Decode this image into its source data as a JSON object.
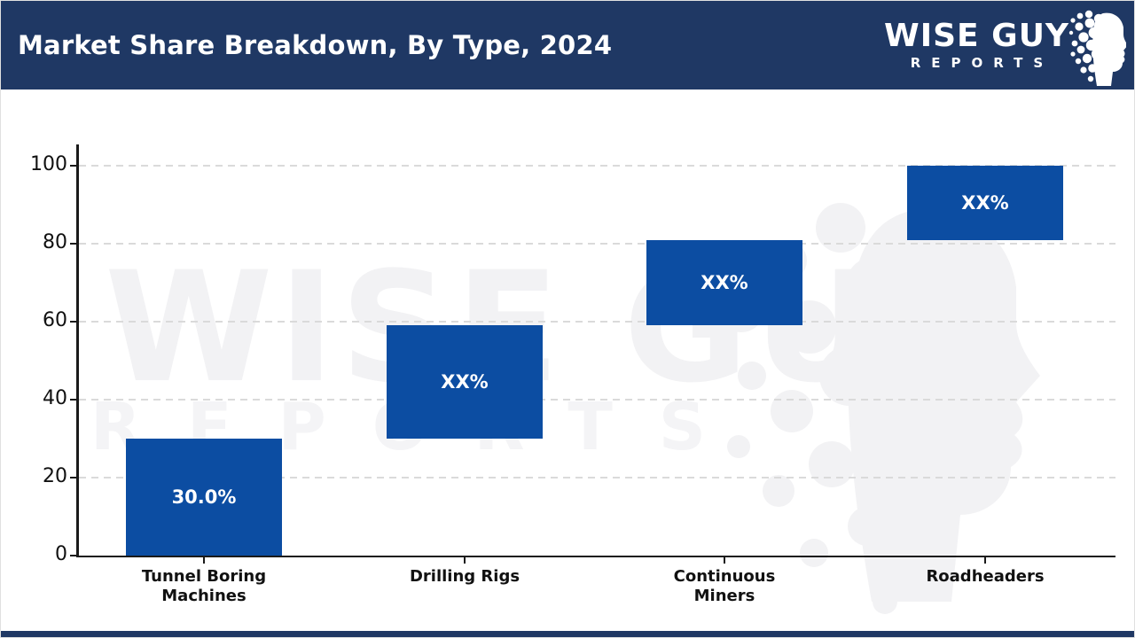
{
  "header": {
    "title": "Market Share Breakdown, By Type, 2024",
    "bg_color": "#1f3864",
    "logo": {
      "wordmark": "WISE GUY",
      "subtext": "REPORTS"
    }
  },
  "watermark": {
    "line1": "WISE GUY",
    "line2": "REPORTS"
  },
  "chart_data": {
    "type": "bar",
    "subtype": "waterfall",
    "title": "Market Share Breakdown, By Type, 2024",
    "xlabel": "",
    "ylabel": "",
    "ylim": [
      0,
      100
    ],
    "yticks": [
      0,
      20,
      40,
      60,
      80,
      100
    ],
    "grid": "horizontal dashed",
    "legend": "none",
    "bar_color": "#0c4da2",
    "gridline_color": "#dadada",
    "categories": [
      "Tunnel Boring Machines",
      "Drilling Rigs",
      "Continuous Miners",
      "Roadheaders"
    ],
    "segments": [
      {
        "category": "Tunnel Boring Machines",
        "start": 0,
        "end": 30,
        "label": "30.0%"
      },
      {
        "category": "Drilling Rigs",
        "start": 30,
        "end": 59,
        "label": "XX%"
      },
      {
        "category": "Continuous Miners",
        "start": 59,
        "end": 81,
        "label": "XX%"
      },
      {
        "category": "Roadheaders",
        "start": 81,
        "end": 100,
        "label": "XX%"
      }
    ]
  },
  "footer": {
    "bg_color": "#1f3864"
  }
}
